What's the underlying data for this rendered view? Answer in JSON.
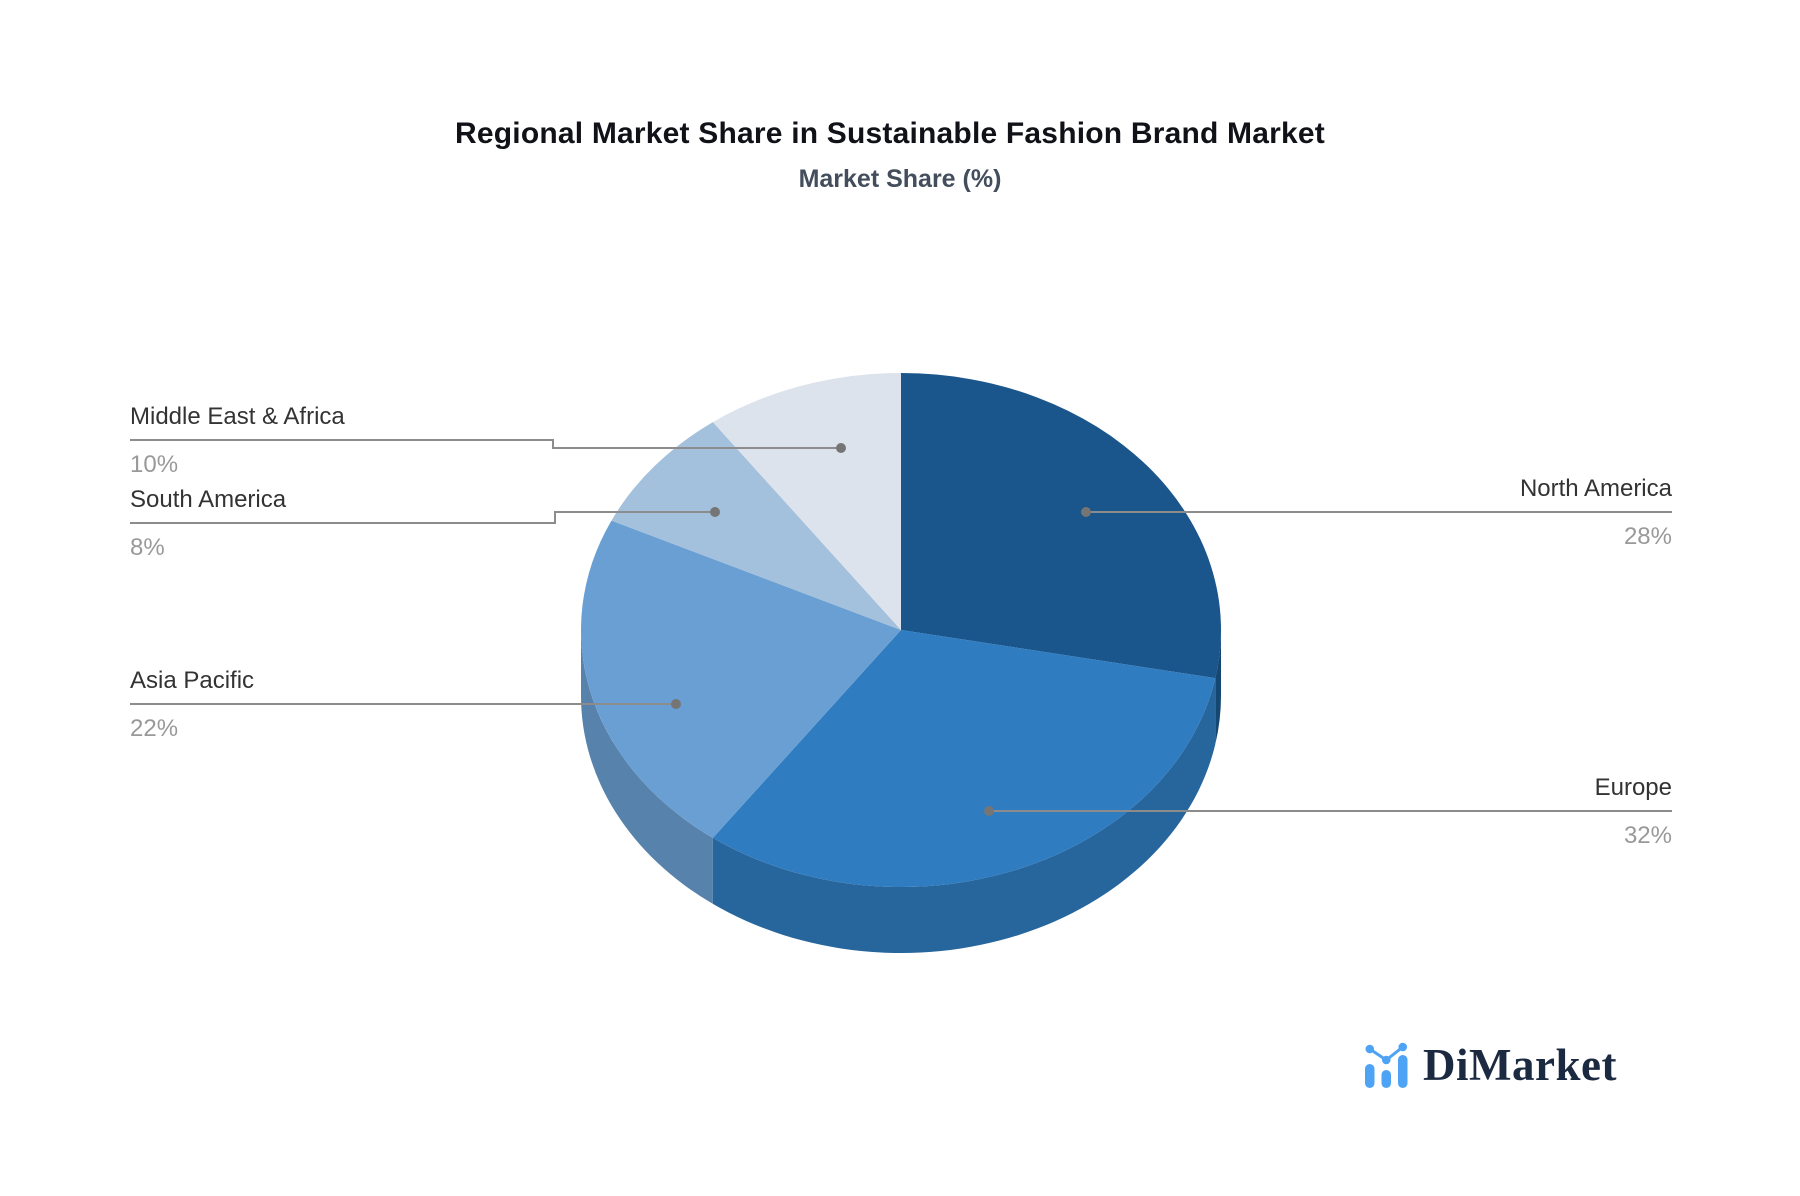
{
  "chart_data": {
    "type": "pie",
    "title": "Regional Market Share in Sustainable Fashion Brand Market",
    "subtitle": "Market Share (%)",
    "unit": "%",
    "style": "3d",
    "start_angle": "12-oclock",
    "direction": "clockwise",
    "series": [
      {
        "name": "North America",
        "value": 28,
        "color": "#1A568C"
      },
      {
        "name": "Europe",
        "value": 32,
        "color": "#2F7CC0"
      },
      {
        "name": "Asia Pacific",
        "value": 22,
        "color": "#699FD2"
      },
      {
        "name": "South America",
        "value": 8,
        "color": "#A3C0DD"
      },
      {
        "name": "Middle East & Africa",
        "value": 10,
        "color": "#DCE3ED"
      }
    ],
    "label_text_color": "#333333",
    "value_text_color": "#999999",
    "leader_line_color": "#8C8C8C",
    "leader_dot_color": "#757575"
  },
  "logo": {
    "text": "DiMarket",
    "icon": "bar-line-chart-icon",
    "icon_color": "#4FA3F4",
    "text_color": "#1B2A41"
  }
}
